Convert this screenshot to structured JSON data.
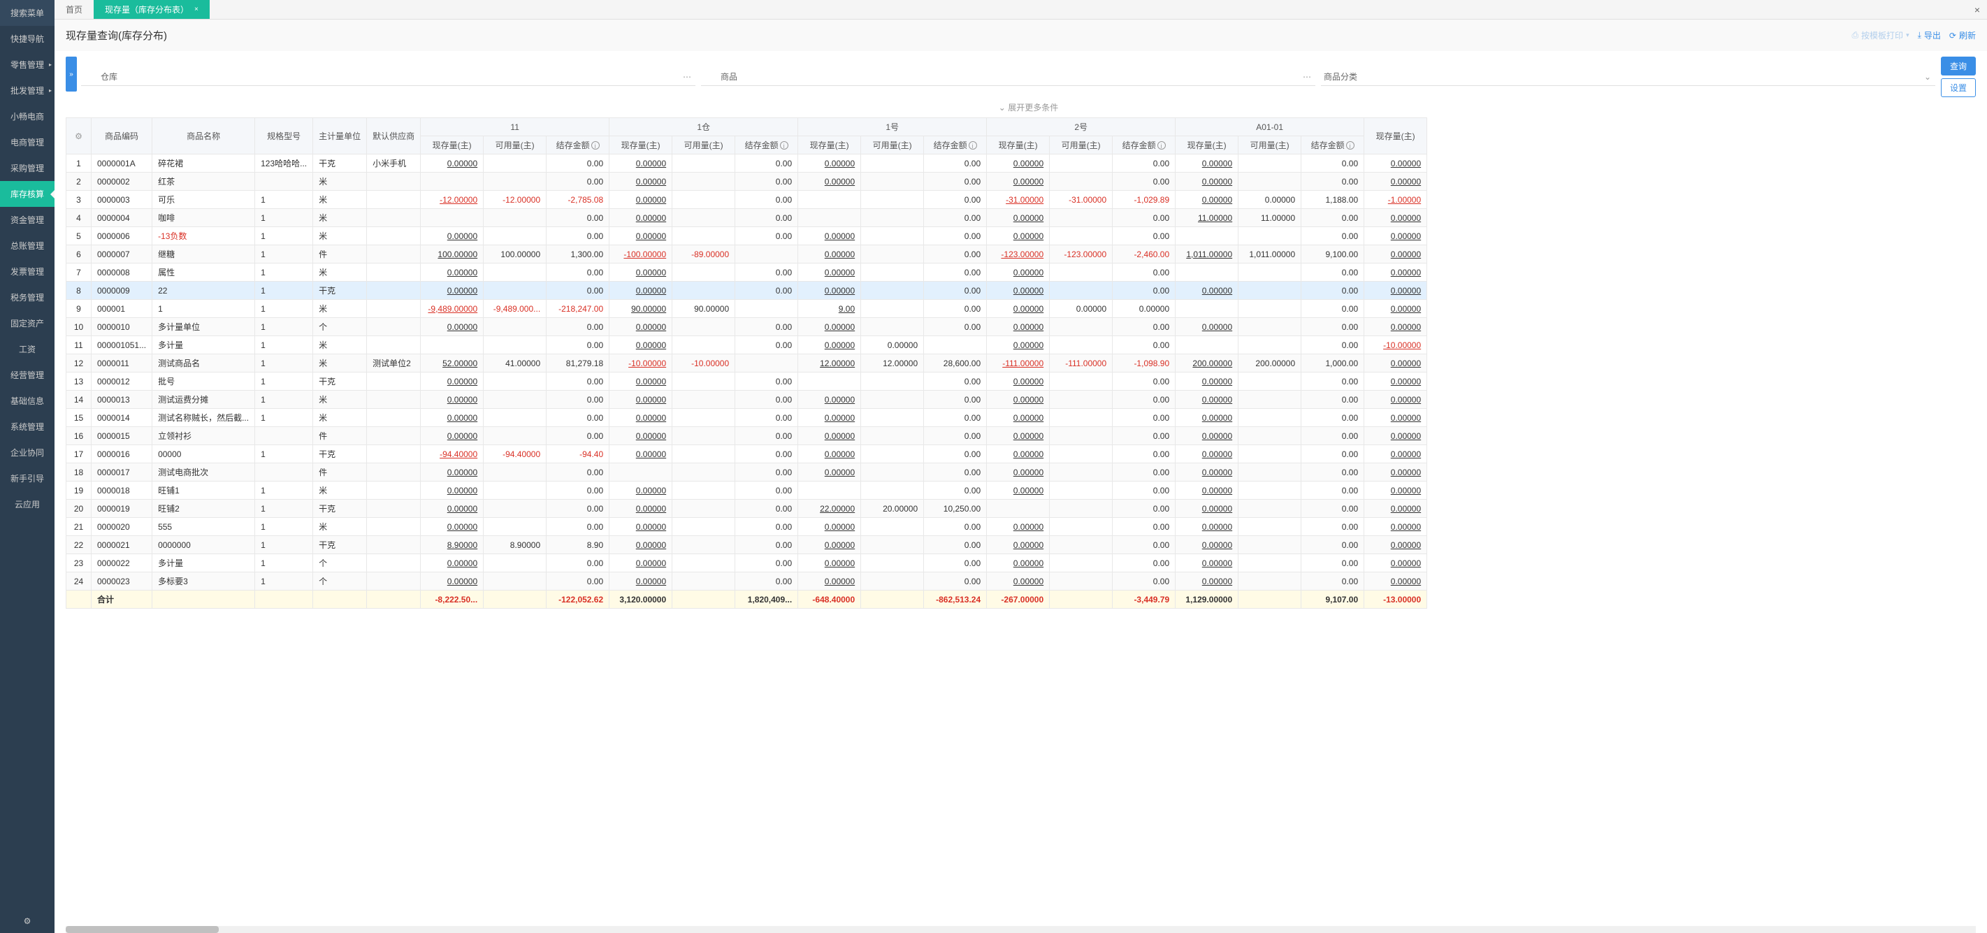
{
  "sidebar": {
    "items": [
      {
        "label": "搜索菜单",
        "expandable": false
      },
      {
        "label": "快捷导航",
        "expandable": false
      },
      {
        "label": "零售管理",
        "expandable": true
      },
      {
        "label": "批发管理",
        "expandable": true
      },
      {
        "label": "小畅电商",
        "expandable": false
      },
      {
        "label": "电商管理",
        "expandable": false
      },
      {
        "label": "采购管理",
        "expandable": false
      },
      {
        "label": "库存核算",
        "expandable": false,
        "active": true
      },
      {
        "label": "资金管理",
        "expandable": false
      },
      {
        "label": "总账管理",
        "expandable": false
      },
      {
        "label": "发票管理",
        "expandable": false
      },
      {
        "label": "税务管理",
        "expandable": false
      },
      {
        "label": "固定资产",
        "expandable": false
      },
      {
        "label": "工资",
        "expandable": false
      },
      {
        "label": "经营管理",
        "expandable": false
      },
      {
        "label": "基础信息",
        "expandable": false
      },
      {
        "label": "系统管理",
        "expandable": false
      },
      {
        "label": "企业协同",
        "expandable": false
      },
      {
        "label": "新手引导",
        "expandable": false
      },
      {
        "label": "云应用",
        "expandable": false
      }
    ]
  },
  "tabs": [
    {
      "label": "首页",
      "closable": false
    },
    {
      "label": "现存量（库存分布表）",
      "closable": true,
      "active": true
    }
  ],
  "page": {
    "title": "现存量查询(库存分布)"
  },
  "header_actions": {
    "template_print": "按模板打印",
    "export": "导出",
    "refresh": "刷新"
  },
  "filters": {
    "warehouse": {
      "label": "仓库"
    },
    "product": {
      "label": "商品"
    },
    "category": {
      "label": "商品分类"
    },
    "query_btn": "查询",
    "settings_btn": "设置",
    "expand": "展开更多条件"
  },
  "table": {
    "fixed_headers": [
      "",
      "商品编码",
      "商品名称",
      "规格型号",
      "主计量单位",
      "默认供应商"
    ],
    "groups": [
      "11",
      "1仓",
      "1号",
      "2号",
      "A01-01"
    ],
    "sub_headers": [
      "现存量(主)",
      "可用量(主)",
      "结存金额"
    ],
    "extra_col": "现存量(主)",
    "total_label": "合计",
    "rows": [
      {
        "idx": 1,
        "code": "0000001A",
        "name": "碎花裙",
        "spec": "123哈哈哈...",
        "unit": "干克",
        "sup": "小米手机",
        "cells": [
          [
            "0.00000",
            "",
            "0.00"
          ],
          [
            "0.00000",
            "",
            "0.00"
          ],
          [
            "0.00000",
            "",
            "0.00"
          ],
          [
            "0.00000",
            "",
            "0.00"
          ],
          [
            "0.00000",
            "",
            "0.00"
          ],
          "0.00000"
        ]
      },
      {
        "idx": 2,
        "code": "0000002",
        "name": "红茶",
        "spec": "",
        "unit": "米",
        "sup": "",
        "cells": [
          [
            "",
            "",
            "0.00"
          ],
          [
            "0.00000",
            "",
            "0.00"
          ],
          [
            "0.00000",
            "",
            "0.00"
          ],
          [
            "0.00000",
            "",
            "0.00"
          ],
          [
            "0.00000",
            "",
            "0.00"
          ],
          "0.00000"
        ]
      },
      {
        "idx": 3,
        "code": "0000003",
        "name": "可乐",
        "spec": "1",
        "unit": "米",
        "sup": "",
        "cells": [
          [
            "-12.00000",
            "-12.00000",
            "-2,785.08"
          ],
          [
            "0.00000",
            "",
            "0.00"
          ],
          [
            "",
            "",
            "0.00"
          ],
          [
            "-31.00000",
            "-31.00000",
            "-1,029.89"
          ],
          [
            "0.00000",
            "0.00000",
            "1,188.00"
          ],
          "-1.00000"
        ]
      },
      {
        "idx": 4,
        "code": "0000004",
        "name": "咖啡",
        "spec": "1",
        "unit": "米",
        "sup": "",
        "cells": [
          [
            "",
            "",
            "0.00"
          ],
          [
            "0.00000",
            "",
            "0.00"
          ],
          [
            "",
            "",
            "0.00"
          ],
          [
            "0.00000",
            "",
            "0.00"
          ],
          [
            "11.00000",
            "11.00000",
            "0.00"
          ],
          "0.00000"
        ]
      },
      {
        "idx": 5,
        "code": "0000006",
        "name": "-13负数",
        "name_neg": true,
        "spec": "1",
        "unit": "米",
        "sup": "",
        "cells": [
          [
            "0.00000",
            "",
            "0.00"
          ],
          [
            "0.00000",
            "",
            "0.00"
          ],
          [
            "0.00000",
            "",
            "0.00"
          ],
          [
            "0.00000",
            "",
            "0.00"
          ],
          [
            "",
            "",
            "0.00"
          ],
          "0.00000"
        ]
      },
      {
        "idx": 6,
        "code": "0000007",
        "name": "继糖",
        "spec": "1",
        "unit": "件",
        "sup": "",
        "cells": [
          [
            "100.00000",
            "100.00000",
            "1,300.00"
          ],
          [
            "-100.00000",
            "-89.00000",
            ""
          ],
          [
            "0.00000",
            "",
            "0.00"
          ],
          [
            "-123.00000",
            "-123.00000",
            "-2,460.00"
          ],
          [
            "1,011.00000",
            "1,011.00000",
            "9,100.00"
          ],
          "0.00000"
        ]
      },
      {
        "idx": 7,
        "code": "0000008",
        "name": "属性",
        "spec": "1",
        "unit": "米",
        "sup": "",
        "cells": [
          [
            "0.00000",
            "",
            "0.00"
          ],
          [
            "0.00000",
            "",
            "0.00"
          ],
          [
            "0.00000",
            "",
            "0.00"
          ],
          [
            "0.00000",
            "",
            "0.00"
          ],
          [
            "",
            "",
            "0.00"
          ],
          "0.00000"
        ]
      },
      {
        "idx": 8,
        "code": "0000009",
        "name": "22",
        "spec": "1",
        "unit": "干克",
        "sup": "",
        "highlight": true,
        "cells": [
          [
            "0.00000",
            "",
            "0.00"
          ],
          [
            "0.00000",
            "",
            "0.00"
          ],
          [
            "0.00000",
            "",
            "0.00"
          ],
          [
            "0.00000",
            "",
            "0.00"
          ],
          [
            "0.00000",
            "",
            "0.00"
          ],
          "0.00000"
        ]
      },
      {
        "idx": 9,
        "code": "000001",
        "name": "1",
        "spec": "1",
        "unit": "米",
        "sup": "",
        "cells": [
          [
            "-9,489.00000",
            "-9,489.000...",
            "-218,247.00"
          ],
          [
            "90.00000",
            "90.00000",
            ""
          ],
          [
            "9.00",
            "",
            "0.00"
          ],
          [
            "0.00000",
            "0.00000",
            "0.00000"
          ],
          [
            "",
            "",
            "0.00"
          ],
          "0.00000"
        ]
      },
      {
        "idx": 10,
        "code": "0000010",
        "name": "多计量单位",
        "spec": "1",
        "unit": "个",
        "sup": "",
        "cells": [
          [
            "0.00000",
            "",
            "0.00"
          ],
          [
            "0.00000",
            "",
            "0.00"
          ],
          [
            "0.00000",
            "",
            "0.00"
          ],
          [
            "0.00000",
            "",
            "0.00"
          ],
          [
            "0.00000",
            "",
            "0.00"
          ],
          "0.00000"
        ]
      },
      {
        "idx": 11,
        "code": "000001051...",
        "name": "多计量",
        "spec": "1",
        "unit": "米",
        "sup": "",
        "cells": [
          [
            "",
            "",
            "0.00"
          ],
          [
            "0.00000",
            "",
            "0.00"
          ],
          [
            "0.00000",
            "0.00000",
            ""
          ],
          [
            "0.00000",
            "",
            "0.00"
          ],
          [
            "",
            "",
            "0.00"
          ],
          "-10.00000"
        ]
      },
      {
        "idx": 12,
        "code": "0000011",
        "name": "测试商品名",
        "spec": "1",
        "unit": "米",
        "sup": "测试单位2",
        "cells": [
          [
            "52.00000",
            "41.00000",
            "81,279.18"
          ],
          [
            "-10.00000",
            "-10.00000",
            ""
          ],
          [
            "12.00000",
            "12.00000",
            "28,600.00"
          ],
          [
            "-111.00000",
            "-111.00000",
            "-1,098.90"
          ],
          [
            "200.00000",
            "200.00000",
            "1,000.00"
          ],
          "0.00000"
        ]
      },
      {
        "idx": 13,
        "code": "0000012",
        "name": "批号",
        "spec": "1",
        "unit": "干克",
        "sup": "",
        "cells": [
          [
            "0.00000",
            "",
            "0.00"
          ],
          [
            "0.00000",
            "",
            "0.00"
          ],
          [
            "",
            "",
            "0.00"
          ],
          [
            "0.00000",
            "",
            "0.00"
          ],
          [
            "0.00000",
            "",
            "0.00"
          ],
          "0.00000"
        ]
      },
      {
        "idx": 14,
        "code": "0000013",
        "name": "测试运费分摊",
        "spec": "1",
        "unit": "米",
        "sup": "",
        "cells": [
          [
            "0.00000",
            "",
            "0.00"
          ],
          [
            "0.00000",
            "",
            "0.00"
          ],
          [
            "0.00000",
            "",
            "0.00"
          ],
          [
            "0.00000",
            "",
            "0.00"
          ],
          [
            "0.00000",
            "",
            "0.00"
          ],
          "0.00000"
        ]
      },
      {
        "idx": 15,
        "code": "0000014",
        "name": "测试名称贼长，然后截...",
        "spec": "1",
        "unit": "米",
        "sup": "",
        "cells": [
          [
            "0.00000",
            "",
            "0.00"
          ],
          [
            "0.00000",
            "",
            "0.00"
          ],
          [
            "0.00000",
            "",
            "0.00"
          ],
          [
            "0.00000",
            "",
            "0.00"
          ],
          [
            "0.00000",
            "",
            "0.00"
          ],
          "0.00000"
        ]
      },
      {
        "idx": 16,
        "code": "0000015",
        "name": "立领衬衫",
        "spec": "",
        "unit": "件",
        "sup": "",
        "cells": [
          [
            "0.00000",
            "",
            "0.00"
          ],
          [
            "0.00000",
            "",
            "0.00"
          ],
          [
            "0.00000",
            "",
            "0.00"
          ],
          [
            "0.00000",
            "",
            "0.00"
          ],
          [
            "0.00000",
            "",
            "0.00"
          ],
          "0.00000"
        ]
      },
      {
        "idx": 17,
        "code": "0000016",
        "name": "00000",
        "spec": "1",
        "unit": "干克",
        "sup": "",
        "cells": [
          [
            "-94.40000",
            "-94.40000",
            "-94.40"
          ],
          [
            "0.00000",
            "",
            "0.00"
          ],
          [
            "0.00000",
            "",
            "0.00"
          ],
          [
            "0.00000",
            "",
            "0.00"
          ],
          [
            "0.00000",
            "",
            "0.00"
          ],
          "0.00000"
        ]
      },
      {
        "idx": 18,
        "code": "0000017",
        "name": "测试电商批次",
        "spec": "",
        "unit": "件",
        "sup": "",
        "cells": [
          [
            "0.00000",
            "",
            "0.00"
          ],
          [
            "",
            "",
            "0.00"
          ],
          [
            "0.00000",
            "",
            "0.00"
          ],
          [
            "0.00000",
            "",
            "0.00"
          ],
          [
            "0.00000",
            "",
            "0.00"
          ],
          "0.00000"
        ]
      },
      {
        "idx": 19,
        "code": "0000018",
        "name": "旺铺1",
        "spec": "1",
        "unit": "米",
        "sup": "",
        "cells": [
          [
            "0.00000",
            "",
            "0.00"
          ],
          [
            "0.00000",
            "",
            "0.00"
          ],
          [
            "",
            "",
            "0.00"
          ],
          [
            "0.00000",
            "",
            "0.00"
          ],
          [
            "0.00000",
            "",
            "0.00"
          ],
          "0.00000"
        ]
      },
      {
        "idx": 20,
        "code": "0000019",
        "name": "旺铺2",
        "spec": "1",
        "unit": "干克",
        "sup": "",
        "cells": [
          [
            "0.00000",
            "",
            "0.00"
          ],
          [
            "0.00000",
            "",
            "0.00"
          ],
          [
            "22.00000",
            "20.00000",
            "10,250.00"
          ],
          [
            "",
            "",
            "0.00"
          ],
          [
            "0.00000",
            "",
            "0.00"
          ],
          "0.00000"
        ]
      },
      {
        "idx": 21,
        "code": "0000020",
        "name": "555",
        "spec": "1",
        "unit": "米",
        "sup": "",
        "cells": [
          [
            "0.00000",
            "",
            "0.00"
          ],
          [
            "0.00000",
            "",
            "0.00"
          ],
          [
            "0.00000",
            "",
            "0.00"
          ],
          [
            "0.00000",
            "",
            "0.00"
          ],
          [
            "0.00000",
            "",
            "0.00"
          ],
          "0.00000"
        ]
      },
      {
        "idx": 22,
        "code": "0000021",
        "name": "0000000",
        "spec": "1",
        "unit": "干克",
        "sup": "",
        "cells": [
          [
            "8.90000",
            "8.90000",
            "8.90"
          ],
          [
            "0.00000",
            "",
            "0.00"
          ],
          [
            "0.00000",
            "",
            "0.00"
          ],
          [
            "0.00000",
            "",
            "0.00"
          ],
          [
            "0.00000",
            "",
            "0.00"
          ],
          "0.00000"
        ]
      },
      {
        "idx": 23,
        "code": "0000022",
        "name": "多计量",
        "spec": "1",
        "unit": "个",
        "sup": "",
        "cells": [
          [
            "0.00000",
            "",
            "0.00"
          ],
          [
            "0.00000",
            "",
            "0.00"
          ],
          [
            "0.00000",
            "",
            "0.00"
          ],
          [
            "0.00000",
            "",
            "0.00"
          ],
          [
            "0.00000",
            "",
            "0.00"
          ],
          "0.00000"
        ]
      },
      {
        "idx": 24,
        "code": "0000023",
        "name": "多标要3",
        "spec": "1",
        "unit": "个",
        "sup": "",
        "cells": [
          [
            "0.00000",
            "",
            "0.00"
          ],
          [
            "0.00000",
            "",
            "0.00"
          ],
          [
            "0.00000",
            "",
            "0.00"
          ],
          [
            "0.00000",
            "",
            "0.00"
          ],
          [
            "0.00000",
            "",
            "0.00"
          ],
          "0.00000"
        ]
      }
    ],
    "totals": {
      "cells": [
        [
          "-8,222.50...",
          "",
          "-122,052.62"
        ],
        [
          "3,120.00000",
          "",
          "1,820,409..."
        ],
        [
          "-648.40000",
          "",
          "-862,513.24"
        ],
        [
          "-267.00000",
          "",
          "-3,449.79"
        ],
        [
          "1,129.00000",
          "",
          "9,107.00"
        ],
        "-13.00000"
      ]
    }
  }
}
